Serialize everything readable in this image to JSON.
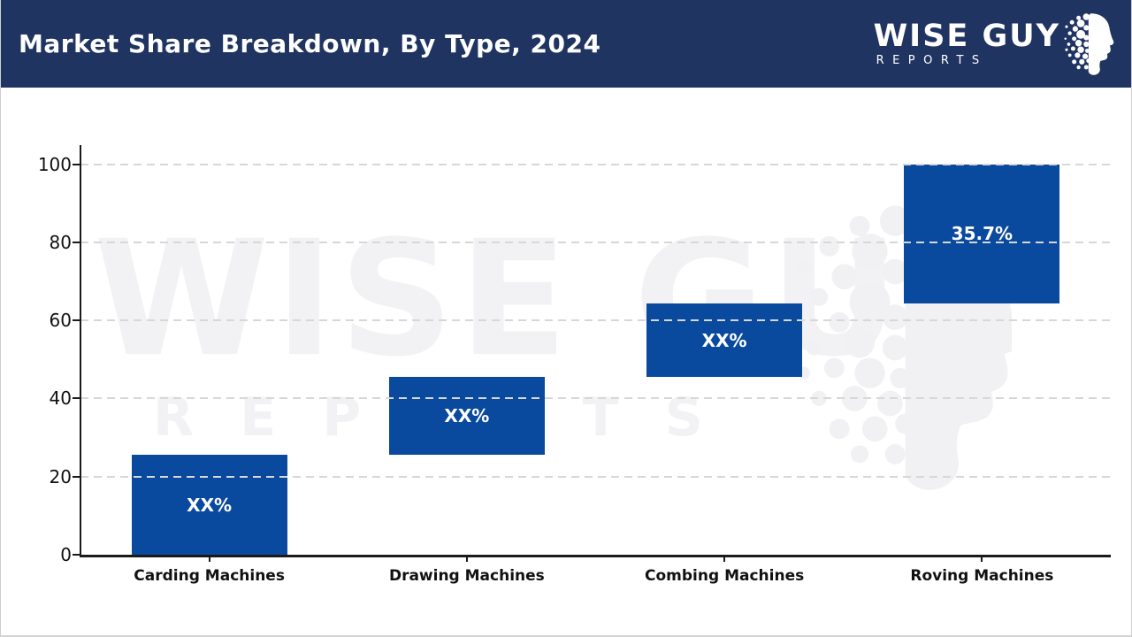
{
  "header": {
    "title": "Market Share Breakdown, By Type, 2024",
    "bg_color": "#203462",
    "logo": {
      "line1": "WISE GUY",
      "line2": "REPORTS",
      "face_icon": "dotted-head-profile"
    }
  },
  "watermark": {
    "line1": "WISE GUY",
    "line2": "REPORTS",
    "face_icon": "dotted-head-profile",
    "color": "#f2f2f4"
  },
  "chart_data": {
    "type": "bar",
    "variant": "floating-waterfall",
    "title": "Market Share Breakdown, By Type, 2024",
    "categories": [
      "Carding Machines",
      "Drawing Machines",
      "Combing Machines",
      "Roving Machines"
    ],
    "series": [
      {
        "name": "Market share (%)",
        "segments": [
          {
            "category": "Carding Machines",
            "start": 0,
            "end": 25.5,
            "label": "XX%"
          },
          {
            "category": "Drawing Machines",
            "start": 25.5,
            "end": 45.5,
            "label": "XX%"
          },
          {
            "category": "Combing Machines",
            "start": 45.5,
            "end": 64.3,
            "label": "XX%"
          },
          {
            "category": "Roving Machines",
            "start": 64.3,
            "end": 100,
            "label": "35.7%"
          }
        ]
      }
    ],
    "xlabel": "",
    "ylabel": "",
    "yticks": [
      0,
      20,
      40,
      60,
      80,
      100
    ],
    "ylim": [
      0,
      105
    ],
    "grid": {
      "axis": "y",
      "style": "dashed",
      "color": "#d7d7d7",
      "drawn_on_top": true
    },
    "bar_color": "#0a4a9e",
    "bar_label_color": "#ffffff",
    "legend": "none"
  }
}
